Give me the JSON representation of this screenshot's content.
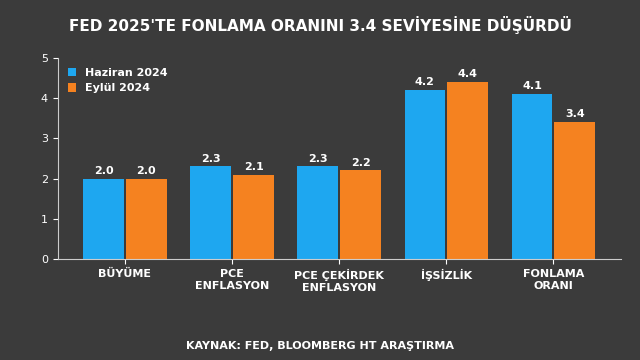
{
  "chart_data": {
    "type": "bar",
    "title": "FED 2025'TE FONLAMA ORANINI 3.4 SEVİYESİNE DÜŞÜRDÜ",
    "source": "KAYNAK: FED, BLOOMBERG HT ARAŞTIRMA",
    "categories": [
      "BÜYÜME",
      "PCE ENFLASYON",
      "PCE ÇEKİRDEK ENFLASYON",
      "İŞSİZLİK",
      "FONLAMA ORANI"
    ],
    "series": [
      {
        "name": "Haziran 2024",
        "color": "#1ea7f0",
        "values": [
          2.0,
          2.3,
          2.3,
          4.2,
          4.1
        ]
      },
      {
        "name": "Eylül 2024",
        "color": "#f58220",
        "values": [
          2.0,
          2.1,
          2.2,
          4.4,
          3.4
        ]
      }
    ],
    "ylim": [
      0,
      5
    ],
    "yticks": [
      0,
      1,
      2,
      3,
      4,
      5
    ],
    "grid": false,
    "legend": "upper left",
    "data_labels": true
  }
}
